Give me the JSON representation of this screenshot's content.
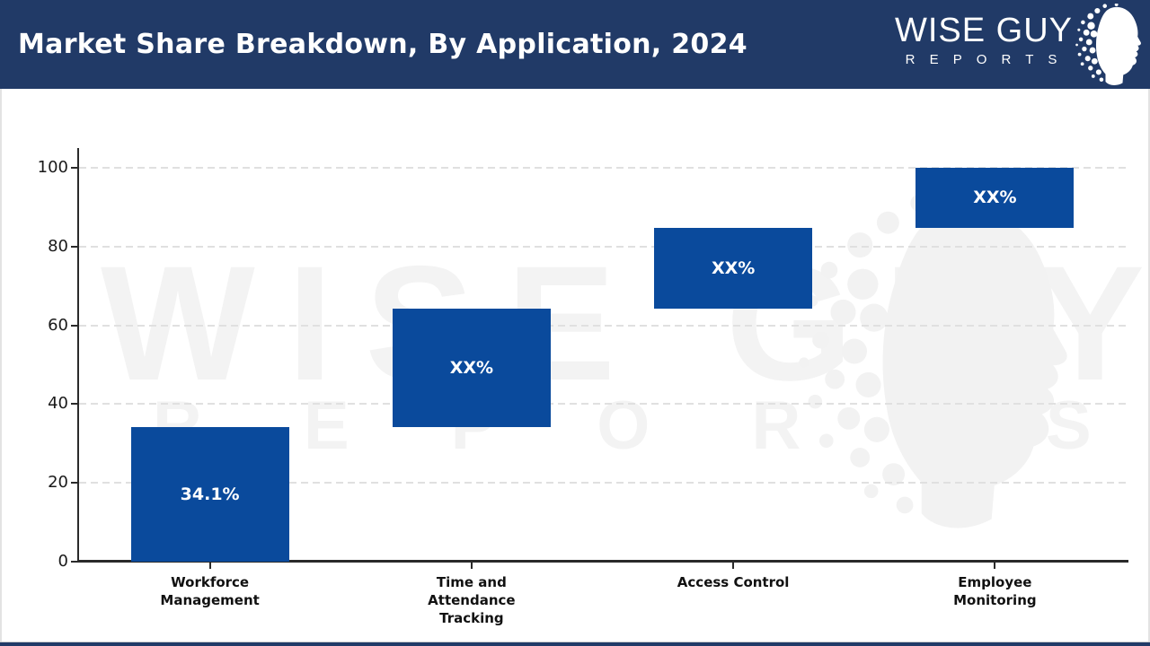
{
  "header": {
    "title": "Market Share Breakdown, By Application, 2024",
    "logo": {
      "line1": "WISE GUY",
      "line2": "R E P O R T S"
    }
  },
  "watermark": {
    "line1": "WISE GUY",
    "line2": "R E P O R T S"
  },
  "chart_data": {
    "type": "bar",
    "subtype": "floating-waterfall",
    "title": "Market Share Breakdown, By Application, 2024",
    "categories": [
      "Workforce Management",
      "Time and Attendance Tracking",
      "Access Control",
      "Employee Monitoring"
    ],
    "category_label_lines": [
      [
        "Workforce",
        "Management"
      ],
      [
        "Time and",
        "Attendance",
        "Tracking"
      ],
      [
        "Access Control"
      ],
      [
        "Employee",
        "Monitoring"
      ]
    ],
    "series": [
      {
        "name": "Market share (%)",
        "segments": [
          {
            "category": "Workforce Management",
            "start": 0,
            "end": 34.1,
            "label": "34.1%"
          },
          {
            "category": "Time and Attendance Tracking",
            "start": 34.1,
            "end": 64.2,
            "label": "XX%"
          },
          {
            "category": "Access Control",
            "start": 64.2,
            "end": 84.8,
            "label": "XX%"
          },
          {
            "category": "Employee Monitoring",
            "start": 84.8,
            "end": 100,
            "label": "XX%"
          }
        ]
      }
    ],
    "ylim": [
      0,
      100
    ],
    "yticks": [
      0,
      20,
      40,
      60,
      80,
      100
    ],
    "grid": true,
    "grid_style": "dashed",
    "legend": "none",
    "bar_color": "#0a4a9c",
    "bar_label_color": "#ffffff",
    "axis_color": "#2a2a2a",
    "header_color": "#213a67",
    "watermark_color": "#f3f3f3",
    "xlabel": "",
    "ylabel": ""
  }
}
